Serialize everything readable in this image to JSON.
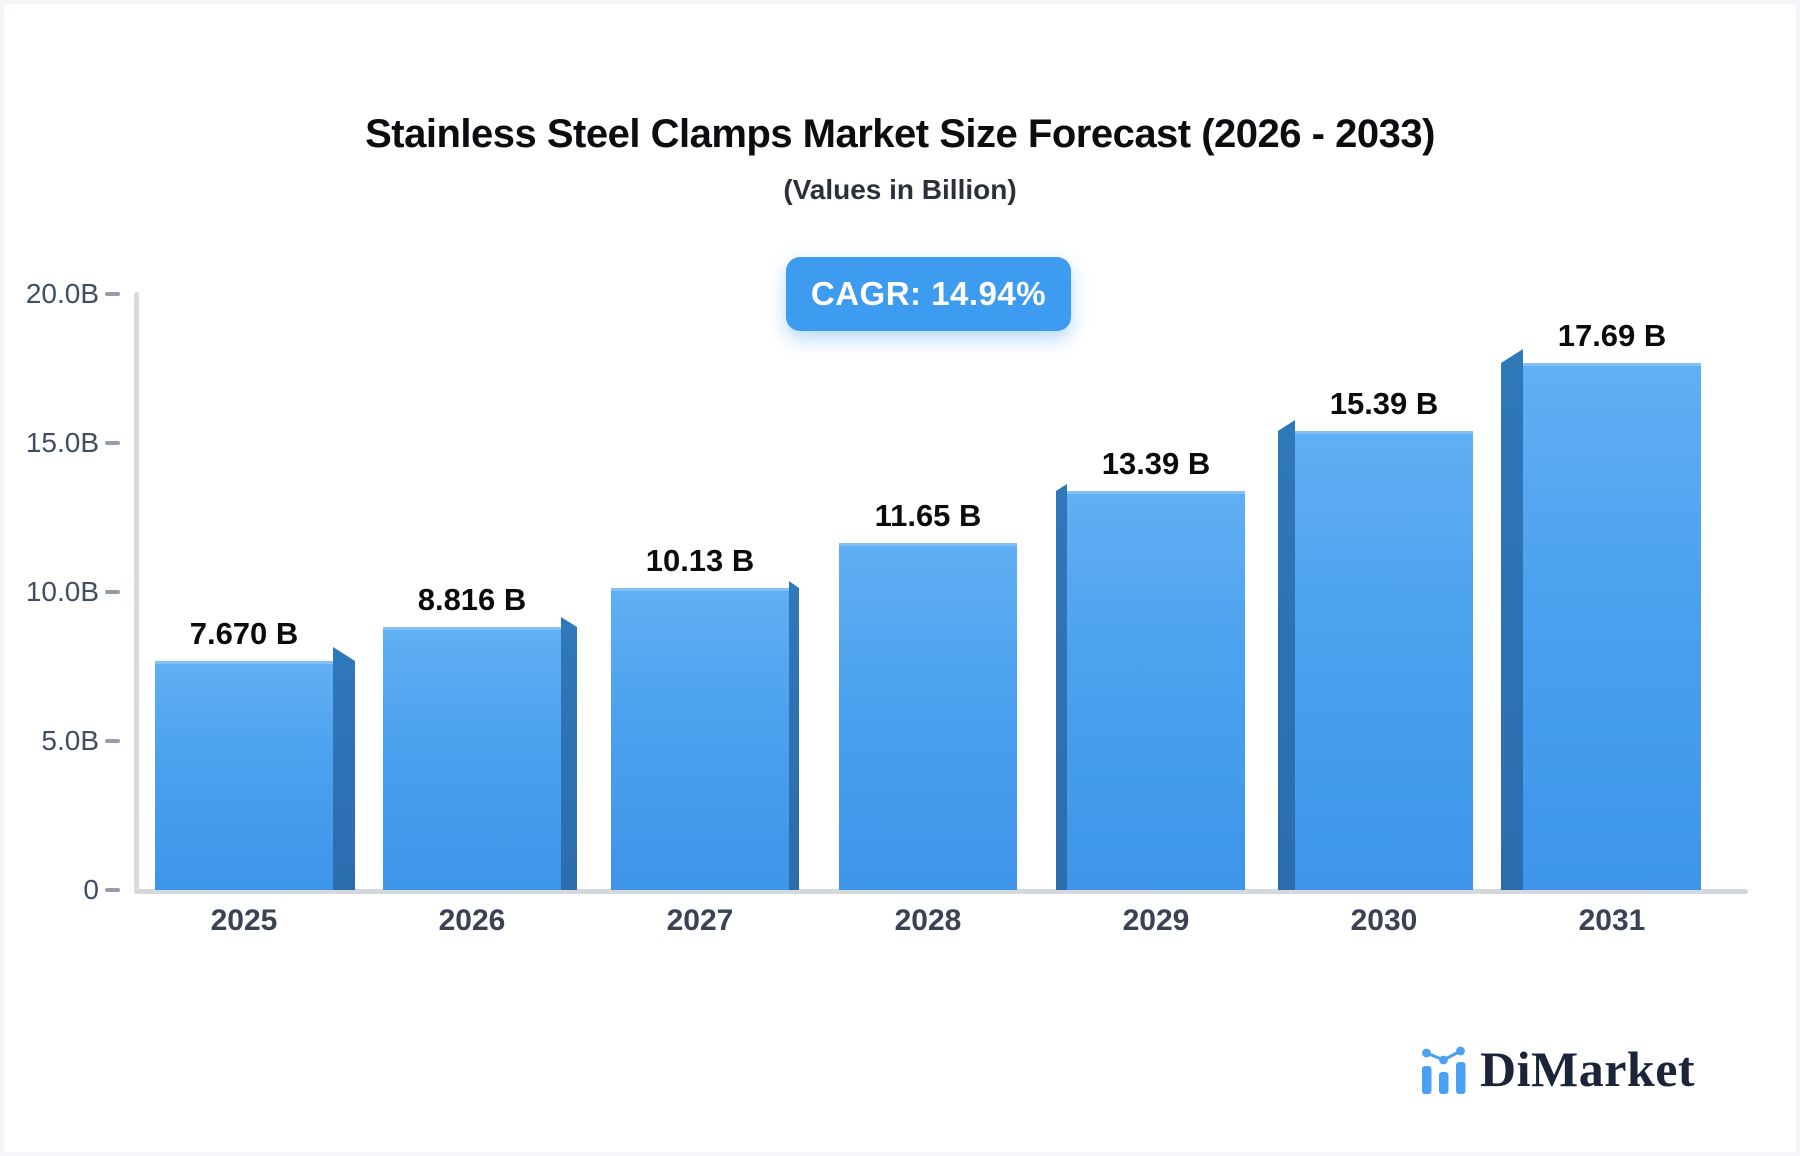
{
  "header": {
    "title": "Stainless Steel Clamps Market Size Forecast (2026 - 2033)",
    "subtitle": "(Values in Billion)"
  },
  "badge": {
    "label": "CAGR: 14.94%",
    "background_color": "#3e9cf0",
    "text_color": "#ffffff"
  },
  "chart_data": {
    "type": "bar",
    "title": "Stainless Steel Clamps Market Size Forecast (2026 - 2033)",
    "subtitle": "(Values in Billion)",
    "categories": [
      "2025",
      "2026",
      "2027",
      "2028",
      "2029",
      "2030",
      "2031"
    ],
    "values": [
      7.67,
      8.816,
      10.13,
      11.65,
      13.39,
      15.39,
      17.69
    ],
    "value_labels": [
      "7.670 B",
      "8.816 B",
      "10.13 B",
      "11.65 B",
      "13.39 B",
      "15.39 B",
      "17.69 B"
    ],
    "xlabel": "",
    "ylabel": "",
    "ylim": [
      0,
      20
    ],
    "yticks": [
      {
        "value": 20,
        "label": "20.0B"
      },
      {
        "value": 15,
        "label": "15.0B"
      },
      {
        "value": 10,
        "label": "10.0B"
      },
      {
        "value": 5,
        "label": "5.0B"
      },
      {
        "value": 0,
        "label": "0"
      }
    ],
    "grid": false,
    "legend": false,
    "bar_color_top": "#61aff3",
    "bar_color_bottom": "#3e95e9",
    "bar_side_color": "#2d72b5",
    "axis_color": "#d8dce2",
    "style": "3d-perspective-bars"
  },
  "logo": {
    "text": "DiMarket",
    "icon": "mini-bar-chart-icon",
    "icon_color": "#4aa0f4",
    "text_color": "#1b2539"
  }
}
